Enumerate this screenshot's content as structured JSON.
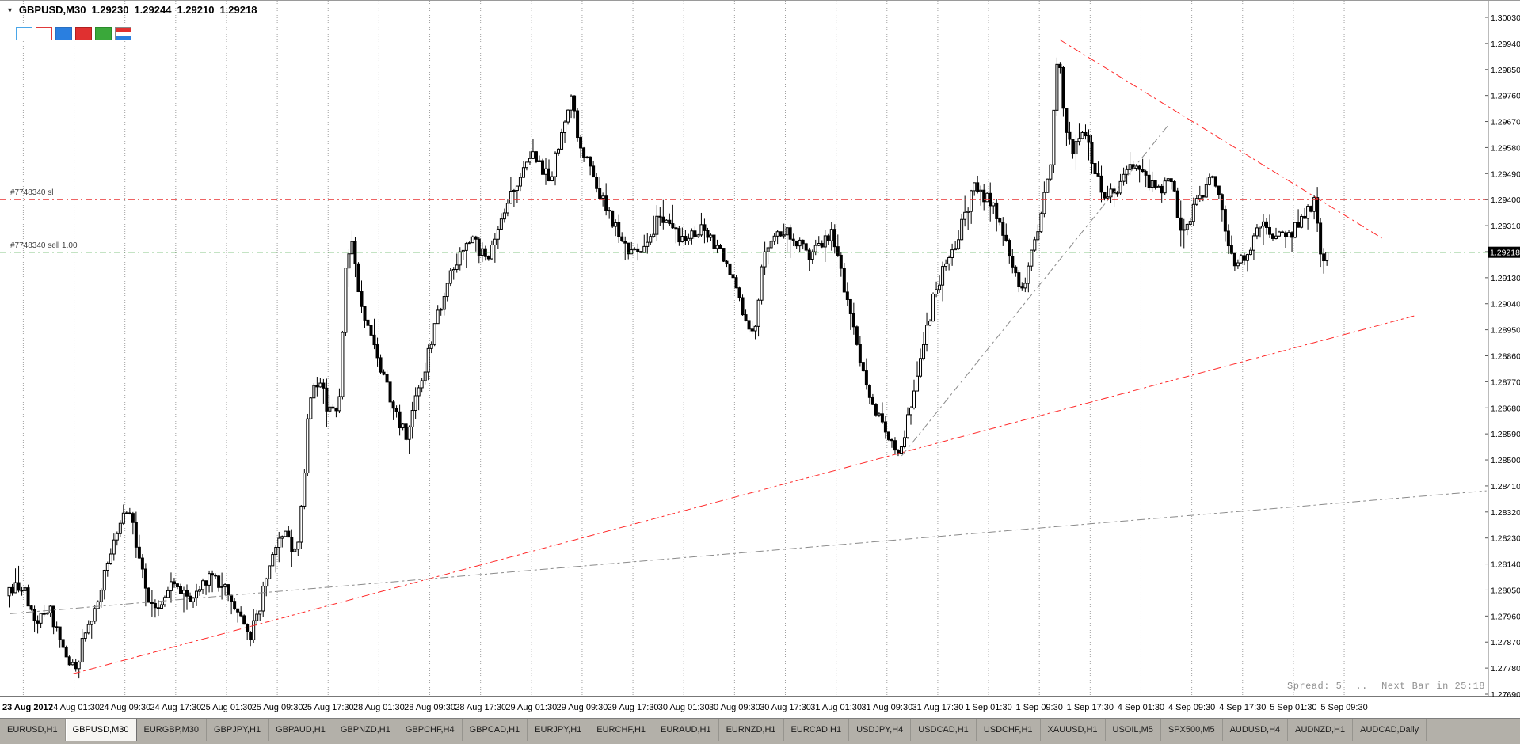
{
  "header": {
    "marker": "▼",
    "symbol": "GBPUSD,M30",
    "open": "1.29230",
    "high": "1.29244",
    "low": "1.29210",
    "close": "1.29218"
  },
  "toolbar": {
    "buttons": [
      {
        "name": "outline-blue-button",
        "fill": "#ffffff",
        "border": "#4aa6e8"
      },
      {
        "name": "outline-red-button",
        "fill": "#ffffff",
        "border": "#e03a3a"
      },
      {
        "name": "solid-blue-button",
        "fill": "#2a7fe0",
        "border": "#2a6fc0"
      },
      {
        "name": "solid-red-button",
        "fill": "#e03030",
        "border": "#b02020"
      },
      {
        "name": "solid-green-button",
        "fill": "#3aa83a",
        "border": "#2a8a2a"
      },
      {
        "name": "striped-flag-button",
        "stripes": [
          "#e03030",
          "#ffffff",
          "#2a7fe0"
        ]
      }
    ]
  },
  "chart_data": {
    "type": "candlestick",
    "symbol": "GBPUSD",
    "timeframe": "M30",
    "current_price": "1.29218",
    "grid": "vertical-dotted",
    "y_axis": {
      "min": 1.2769,
      "max": 1.3003,
      "tick_step": 0.0009,
      "tick_labels": [
        "1.30030",
        "1.29940",
        "1.29850",
        "1.29760",
        "1.29670",
        "1.29580",
        "1.29490",
        "1.29400",
        "1.29310",
        "1.29220",
        "1.29130",
        "1.29040",
        "1.28950",
        "1.28860",
        "1.28770",
        "1.28680",
        "1.28590",
        "1.28500",
        "1.28410",
        "1.28320",
        "1.28230",
        "1.28140",
        "1.28050",
        "1.27960",
        "1.27870",
        "1.27780",
        "1.27690"
      ]
    },
    "x_axis": {
      "labels": [
        "23 Aug 2017",
        "24 Aug 01:30",
        "24 Aug 09:30",
        "24 Aug 17:30",
        "25 Aug 01:30",
        "25 Aug 09:30",
        "25 Aug 17:30",
        "28 Aug 01:30",
        "28 Aug 09:30",
        "28 Aug 17:30",
        "29 Aug 01:30",
        "29 Aug 09:30",
        "29 Aug 17:30",
        "30 Aug 01:30",
        "30 Aug 09:30",
        "30 Aug 17:30",
        "31 Aug 01:30",
        "31 Aug 09:30",
        "31 Aug 17:30",
        "1 Sep 01:30",
        "1 Sep 09:30",
        "1 Sep 17:30",
        "4 Sep 01:30",
        "4 Sep 09:30",
        "4 Sep 17:30",
        "5 Sep 01:30",
        "5 Sep 09:30"
      ],
      "bars_per_interval": 16
    },
    "anchor_t_unit": "x-axis label interval (8 hours)",
    "price_path_anchors": [
      [
        -0.31,
        1.2803
      ],
      [
        0.0,
        1.2807
      ],
      [
        0.3,
        1.2794
      ],
      [
        0.55,
        1.2799
      ],
      [
        0.8,
        1.2784
      ],
      [
        1.05,
        1.2777
      ],
      [
        1.25,
        1.279
      ],
      [
        1.45,
        1.28
      ],
      [
        1.7,
        1.2814
      ],
      [
        1.95,
        1.283
      ],
      [
        2.1,
        1.2835
      ],
      [
        2.3,
        1.2818
      ],
      [
        2.5,
        1.2801
      ],
      [
        2.75,
        1.2799
      ],
      [
        3.0,
        1.2808
      ],
      [
        3.25,
        1.2802
      ],
      [
        3.5,
        1.2806
      ],
      [
        3.75,
        1.281
      ],
      [
        4.0,
        1.2806
      ],
      [
        4.25,
        1.2798
      ],
      [
        4.5,
        1.2789
      ],
      [
        4.7,
        1.28
      ],
      [
        4.95,
        1.282
      ],
      [
        5.2,
        1.2826
      ],
      [
        5.4,
        1.2816
      ],
      [
        5.55,
        1.2842
      ],
      [
        5.65,
        1.287
      ],
      [
        5.85,
        1.2879
      ],
      [
        6.05,
        1.2866
      ],
      [
        6.25,
        1.287
      ],
      [
        6.38,
        1.2918
      ],
      [
        6.5,
        1.2926
      ],
      [
        6.65,
        1.2905
      ],
      [
        6.95,
        1.2888
      ],
      [
        7.25,
        1.2872
      ],
      [
        7.55,
        1.2858
      ],
      [
        7.85,
        1.2876
      ],
      [
        8.15,
        1.2898
      ],
      [
        8.45,
        1.2914
      ],
      [
        8.85,
        1.2928
      ],
      [
        9.15,
        1.2918
      ],
      [
        9.55,
        1.2938
      ],
      [
        10.05,
        1.2956
      ],
      [
        10.4,
        1.2947
      ],
      [
        10.7,
        1.2968
      ],
      [
        10.8,
        1.2976
      ],
      [
        10.95,
        1.2962
      ],
      [
        11.15,
        1.2953
      ],
      [
        11.5,
        1.2937
      ],
      [
        11.85,
        1.2924
      ],
      [
        12.2,
        1.292
      ],
      [
        12.55,
        1.2934
      ],
      [
        13.0,
        1.2926
      ],
      [
        13.45,
        1.293
      ],
      [
        13.9,
        1.2917
      ],
      [
        14.2,
        1.29
      ],
      [
        14.4,
        1.2892
      ],
      [
        14.6,
        1.292
      ],
      [
        15.0,
        1.293
      ],
      [
        15.5,
        1.2921
      ],
      [
        15.95,
        1.2928
      ],
      [
        16.3,
        1.2902
      ],
      [
        16.65,
        1.2874
      ],
      [
        17.0,
        1.286
      ],
      [
        17.3,
        1.2851
      ],
      [
        17.6,
        1.2878
      ],
      [
        18.0,
        1.291
      ],
      [
        18.4,
        1.2926
      ],
      [
        18.75,
        1.2944
      ],
      [
        19.15,
        1.2938
      ],
      [
        19.5,
        1.2916
      ],
      [
        19.7,
        1.291
      ],
      [
        20.0,
        1.2928
      ],
      [
        20.25,
        1.2952
      ],
      [
        20.4,
        1.2993
      ],
      [
        20.55,
        1.2964
      ],
      [
        20.7,
        1.2956
      ],
      [
        20.9,
        1.2966
      ],
      [
        21.1,
        1.295
      ],
      [
        21.35,
        1.294
      ],
      [
        21.6,
        1.2944
      ],
      [
        21.85,
        1.2952
      ],
      [
        22.1,
        1.2948
      ],
      [
        22.35,
        1.2942
      ],
      [
        22.6,
        1.2948
      ],
      [
        22.85,
        1.2928
      ],
      [
        23.15,
        1.294
      ],
      [
        23.45,
        1.2948
      ],
      [
        23.65,
        1.2934
      ],
      [
        23.85,
        1.2916
      ],
      [
        24.1,
        1.2921
      ],
      [
        24.4,
        1.2931
      ],
      [
        24.7,
        1.2927
      ],
      [
        25.0,
        1.2929
      ],
      [
        25.2,
        1.2934
      ],
      [
        25.45,
        1.2939
      ],
      [
        25.6,
        1.2917
      ],
      [
        25.72,
        1.29218
      ]
    ],
    "order_lines": [
      {
        "label": "#7748340 sl",
        "price": 1.294,
        "color": "#e83030",
        "style": "dash-dot"
      },
      {
        "label": "#7748340 sell 1.00",
        "price": 1.29218,
        "color": "#149014",
        "style": "dash-dot"
      }
    ],
    "trendlines": [
      {
        "name": "descending-red",
        "color": "#ff2a2a",
        "style": "dash-dot",
        "p1": [
          20.4,
          1.29953
        ],
        "p2": [
          26.74,
          1.29267
        ]
      },
      {
        "name": "ascending-red",
        "color": "#ff2a2a",
        "style": "dash-dot",
        "p1": [
          0.97,
          1.2776
        ],
        "p2": [
          27.4,
          1.28999
        ]
      },
      {
        "name": "ascending-gray-shallow",
        "color": "#8a8a8a",
        "style": "dash-dot",
        "p1": [
          -0.27,
          1.27968
        ],
        "p2": [
          28.8,
          1.28393
        ]
      },
      {
        "name": "ascending-gray-steep",
        "color": "#8a8a8a",
        "style": "dash-dot",
        "p1": [
          17.29,
          1.28514
        ],
        "p2": [
          22.54,
          1.29658
        ]
      }
    ]
  },
  "status_overlay": {
    "spread_label": "Spread: 5",
    "separator": "..",
    "next_bar_label": "Next Bar in 25:18"
  },
  "tabs": [
    "EURUSD,H1",
    "GBPUSD,M30",
    "EURGBP,M30",
    "GBPJPY,H1",
    "GBPAUD,H1",
    "GBPNZD,H1",
    "GBPCHF,H4",
    "GBPCAD,H1",
    "EURJPY,H1",
    "EURCHF,H1",
    "EURAUD,H1",
    "EURNZD,H1",
    "EURCAD,H1",
    "USDJPY,H4",
    "USDCAD,H1",
    "USDCHF,H1",
    "XAUUSD,H1",
    "USOIL,M5",
    "SPX500,M5",
    "AUDUSD,H4",
    "AUDNZD,H1",
    "AUDCAD,Daily"
  ],
  "active_tab": "GBPUSD,M30",
  "colors": {
    "background": "#ffffff",
    "candle": "#000000",
    "grid": "#a0a0a0",
    "axis_text": "#000000",
    "price_badge_bg": "#000000",
    "price_badge_text": "#ffffff",
    "status_text": "#8f8f8f",
    "tabbar_bg": "#b3b0a9"
  }
}
